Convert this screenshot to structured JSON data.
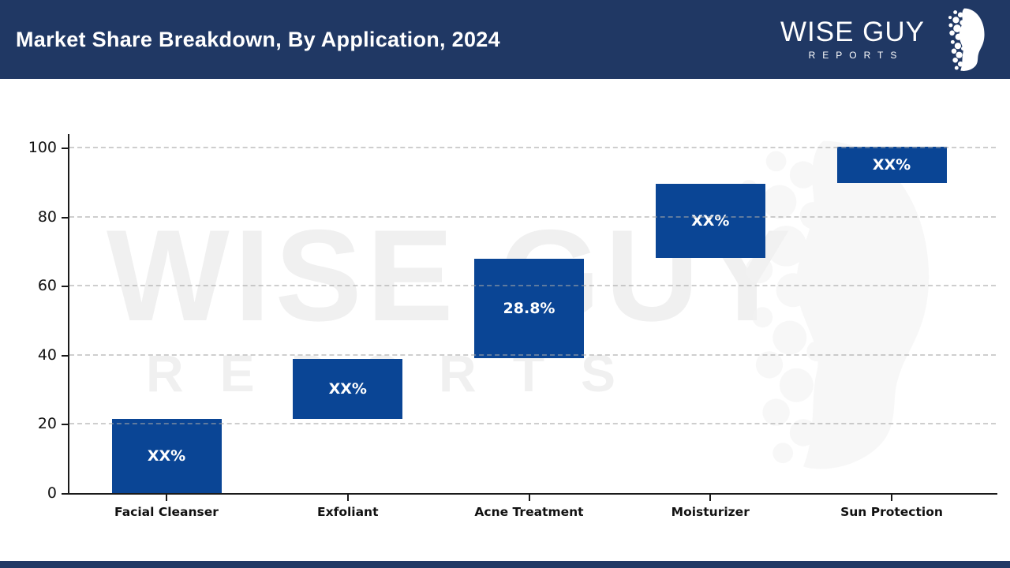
{
  "header": {
    "title": "Market Share Breakdown, By Application, 2024",
    "logo": {
      "line1": "WISE GUY",
      "line2": "REPORTS"
    },
    "bg_color": "#203864",
    "text_color": "#ffffff"
  },
  "watermark": {
    "line1": "WISE GUY",
    "line2": "REPORTS"
  },
  "chart_data": {
    "type": "bar",
    "subtype": "waterfall",
    "title": "Market Share Breakdown, By Application, 2024",
    "categories": [
      "Facial Cleanser",
      "Exfoliant",
      "Acne Treatment",
      "Moisturizer",
      "Sun Protection"
    ],
    "segments": [
      {
        "category": "Facial Cleanser",
        "start": 0,
        "end": 21.5,
        "label": "XX%"
      },
      {
        "category": "Exfoliant",
        "start": 21.5,
        "end": 38.8,
        "label": "XX%"
      },
      {
        "category": "Acne Treatment",
        "start": 39.0,
        "end": 67.8,
        "label": "28.8%"
      },
      {
        "category": "Moisturizer",
        "start": 68.0,
        "end": 89.5,
        "label": "XX%"
      },
      {
        "category": "Sun Protection",
        "start": 89.7,
        "end": 100.3,
        "label": "XX%"
      }
    ],
    "xlabel": "",
    "ylabel": "",
    "yticks": [
      0,
      20,
      40,
      60,
      80,
      100
    ],
    "ylim": [
      0,
      105
    ],
    "grid": "horizontal-dashed",
    "legend_position": "none",
    "bar_color": "#0a4595",
    "bar_label_color": "#ffffff",
    "grid_color": "#d9d9d9",
    "axis_color": "#1a1a1a"
  },
  "footer": {
    "bg_color": "#203864"
  }
}
